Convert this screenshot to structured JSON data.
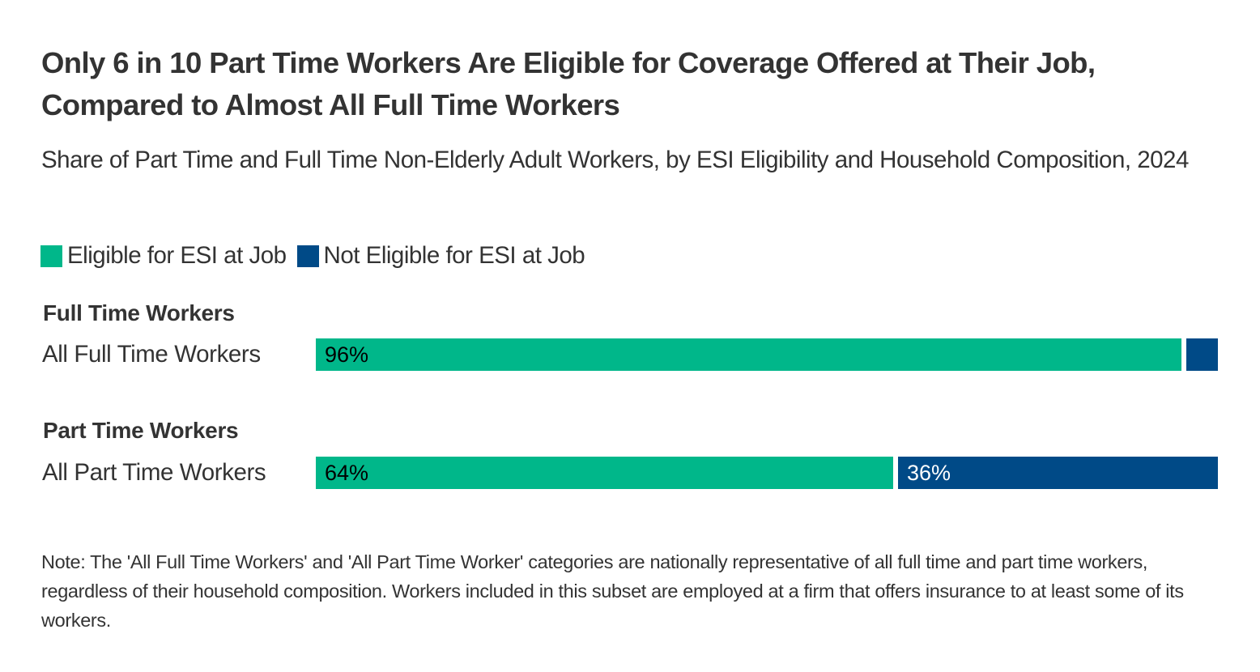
{
  "chart_data": {
    "type": "bar",
    "orientation": "horizontal",
    "stacked": true,
    "normalized_to": 100,
    "title": "Only 6 in 10 Part Time Workers Are Eligible for Coverage Offered at Their Job, Compared to Almost All Full Time Workers",
    "subtitle": "Share of Part Time and Full Time Non-Elderly Adult Workers, by ESI Eligibility and Household Composition, 2024",
    "legend": {
      "position": "top-left",
      "entries": [
        {
          "name": "Eligible for ESI at Job",
          "color": "#00b78a"
        },
        {
          "name": "Not Eligible for ESI at Job",
          "color": "#004a87"
        }
      ]
    },
    "groups": [
      {
        "header": "Full Time Workers",
        "rows": [
          {
            "category": "All Full Time Workers",
            "values": [
              96,
              4
            ],
            "labels": [
              "96%",
              ""
            ]
          }
        ]
      },
      {
        "header": "Part Time Workers",
        "rows": [
          {
            "category": "All Part Time Workers",
            "values": [
              64,
              36
            ],
            "labels": [
              "64%",
              "36%"
            ]
          }
        ]
      }
    ],
    "series": [
      {
        "name": "Eligible for ESI at Job",
        "values": [
          96,
          64
        ],
        "color": "#00b78a",
        "label_color": "#000000"
      },
      {
        "name": "Not Eligible for ESI at Job",
        "values": [
          4,
          36
        ],
        "color": "#004a87",
        "label_color": "#ffffff"
      }
    ],
    "categories": [
      "All Full Time Workers",
      "All Part Time Workers"
    ],
    "xlim": [
      0,
      100
    ],
    "grid": false,
    "note": "Note: The 'All Full Time Workers' and 'All Part Time Worker' categories are nationally representative of all full time and part time workers, regardless of their household composition. Workers included in this subset are employed at a firm that offers insurance to at least some of its workers."
  }
}
